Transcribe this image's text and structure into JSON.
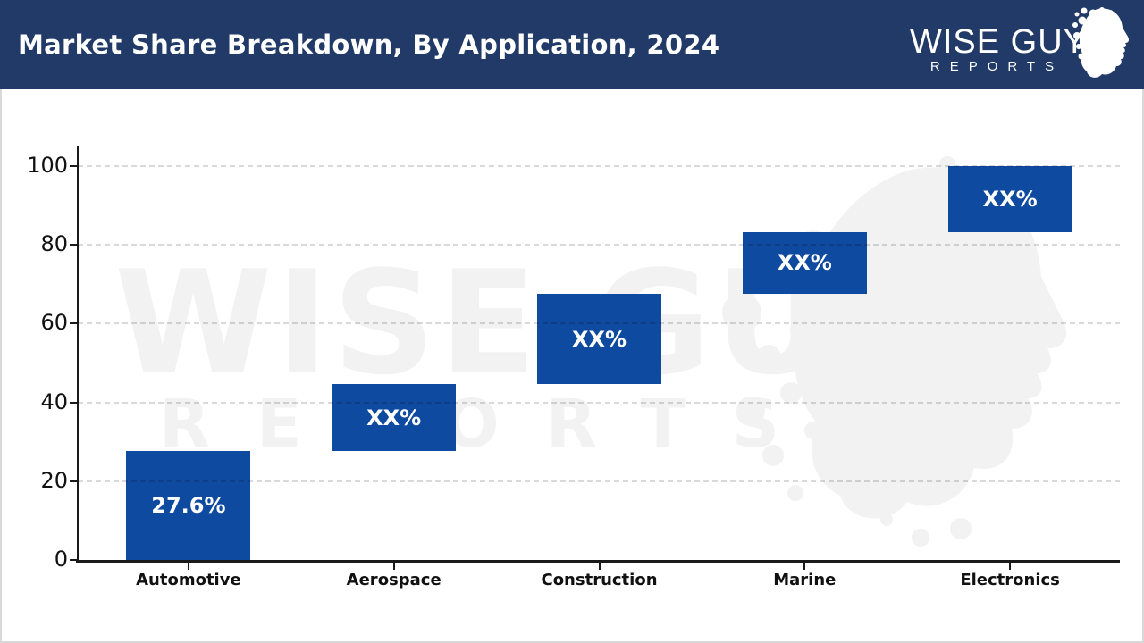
{
  "header": {
    "title": "Market Share Breakdown, By Application, 2024",
    "logo": {
      "line1": "WISE GUY",
      "line2": "REPORTS"
    }
  },
  "watermark": {
    "line1": "WISE GUY",
    "line2": "REPORTS"
  },
  "colors": {
    "header_bg": "#213a68",
    "bar_fill": "#0d4aa0",
    "bar_label_text": "#ffffff",
    "gridline": "#d9d9d9",
    "axis": "#1a1a1a",
    "watermark": "#f2f2f2"
  },
  "chart_data": {
    "type": "bar",
    "subtype": "floating-waterfall",
    "title": "Market Share Breakdown, By Application, 2024",
    "categories": [
      "Automotive",
      "Aerospace",
      "Construction",
      "Marine",
      "Electronics"
    ],
    "segments": [
      {
        "category": "Automotive",
        "from": 0,
        "to": 27.6,
        "label": "27.6%"
      },
      {
        "category": "Aerospace",
        "from": 27.6,
        "to": 44.6,
        "label": "XX%"
      },
      {
        "category": "Construction",
        "from": 44.6,
        "to": 67.6,
        "label": "XX%"
      },
      {
        "category": "Marine",
        "from": 67.6,
        "to": 83.2,
        "label": "XX%"
      },
      {
        "category": "Electronics",
        "from": 83.2,
        "to": 100,
        "label": "XX%"
      }
    ],
    "xlabel": "",
    "ylabel": "",
    "ylim": [
      0,
      100
    ],
    "yticks": [
      0,
      20,
      40,
      60,
      80,
      100
    ],
    "grid": "horizontal-dashed",
    "legend": "none",
    "bar_color": "#0d4aa0"
  }
}
